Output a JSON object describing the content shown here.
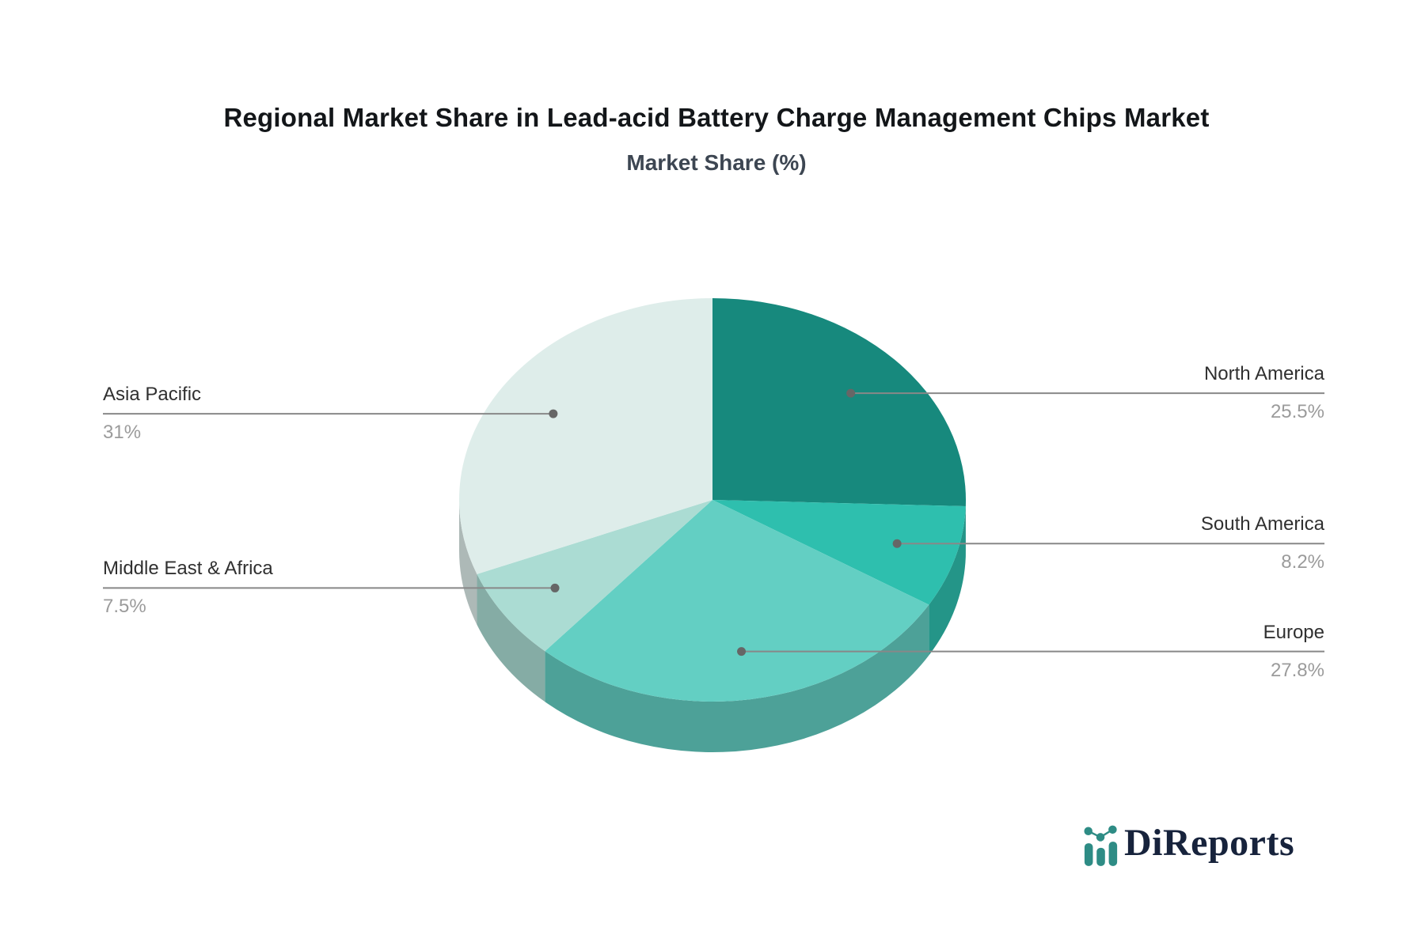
{
  "chart_data": {
    "type": "pie",
    "style": "3d",
    "title": "Regional Market Share in Lead-acid Battery Charge Management Chips Market",
    "subtitle": "Market Share (%)",
    "unit": "%",
    "start_angle_deg": 0,
    "direction": "clockwise",
    "legend_position": "none",
    "slices": [
      {
        "label": "North America",
        "value": 25.5,
        "display": "25.5%",
        "color": "#17897d"
      },
      {
        "label": "South America",
        "value": 8.2,
        "display": "8.2%",
        "color": "#2ebfae"
      },
      {
        "label": "Europe",
        "value": 27.8,
        "display": "27.8%",
        "color": "#63cfc3"
      },
      {
        "label": "Middle East & Africa",
        "value": 7.5,
        "display": "7.5%",
        "color": "#abdcd3"
      },
      {
        "label": "Asia Pacific",
        "value": 31,
        "display": "31%",
        "color": "#deedea"
      }
    ],
    "leader_line_color": "#888888",
    "leader_dot_color": "#666666"
  },
  "logo": {
    "text": "DiReports",
    "icon": "bar-chart-icon",
    "icon_color": "#2e8c85",
    "text_color": "#17233c"
  }
}
